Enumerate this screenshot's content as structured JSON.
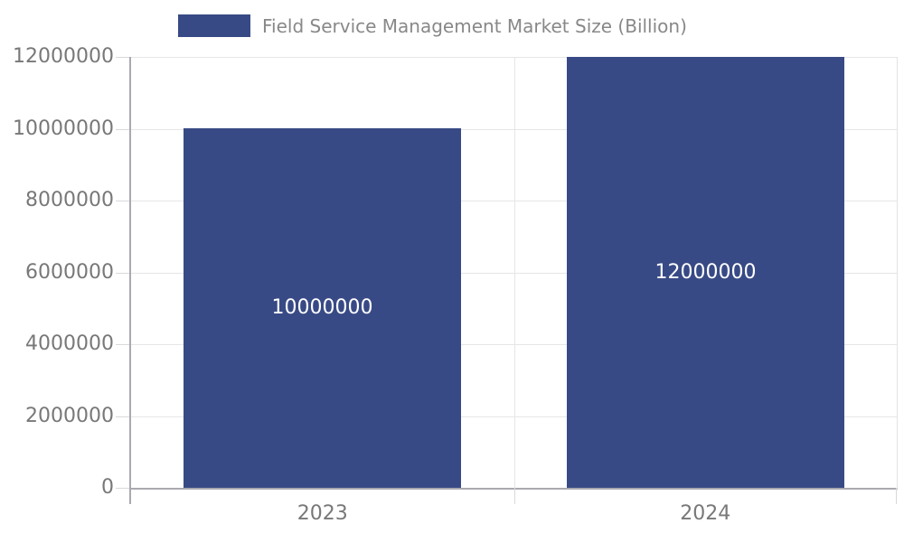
{
  "chart_data": {
    "type": "bar",
    "title": "Field Service Management Market Size (Billion)",
    "categories": [
      "2023",
      "2024"
    ],
    "values": [
      10000000,
      12000000
    ],
    "bar_labels": [
      "10000000",
      "12000000"
    ],
    "xlabel": "",
    "ylabel": "",
    "ylim": [
      0,
      12000000
    ],
    "ytick_interval": 2000000,
    "yticks": [
      0,
      2000000,
      4000000,
      6000000,
      8000000,
      10000000,
      12000000
    ],
    "ytick_labels": [
      "0",
      "2000000",
      "4000000",
      "6000000",
      "8000000",
      "10000000",
      "12000000"
    ],
    "grid": true,
    "legend_position": "top-center"
  },
  "colors": {
    "bar": "#384A85",
    "legend_swatch": "#384A85",
    "title_text": "#888888",
    "tick_text": "#787878",
    "axis_line": "#a9a9b0",
    "gridline": "#e6e6e6",
    "gridline_dark": "#e3e3e6",
    "tick_mark": "#d9d9dc",
    "bar_label_text": "#ffffff",
    "background": "#ffffff"
  }
}
